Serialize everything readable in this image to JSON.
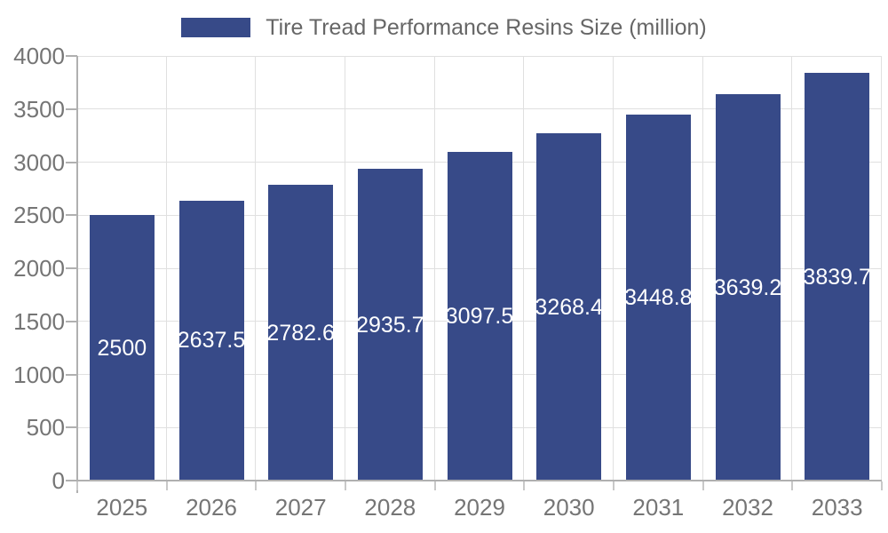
{
  "chart_data": {
    "type": "bar",
    "title": "Tire Tread Performance Resins Size (million)",
    "legend": {
      "position": "top",
      "entries": [
        "Tire Tread Performance Resins Size (million)"
      ]
    },
    "categories": [
      "2025",
      "2026",
      "2027",
      "2028",
      "2029",
      "2030",
      "2031",
      "2032",
      "2033"
    ],
    "values": [
      2500,
      2637.5,
      2782.6,
      2935.7,
      3097.5,
      3268.4,
      3448.8,
      3639.2,
      3839.7
    ],
    "value_labels": [
      "2500",
      "2637.5",
      "2782.6",
      "2935.7",
      "3097.5",
      "3268.4",
      "3448.8",
      "3639.2",
      "3839.7"
    ],
    "xlabel": "",
    "ylabel": "",
    "ylim": [
      0,
      4000
    ],
    "yticks": [
      0,
      500,
      1000,
      1500,
      2000,
      2500,
      3000,
      3500,
      4000
    ],
    "ytick_labels": [
      "0",
      "500",
      "1000",
      "1500",
      "2000",
      "2500",
      "3000",
      "3500",
      "4000"
    ],
    "grid": true,
    "colors": {
      "bar_fill": "#374a88",
      "bar_value_text": "#ffffff",
      "tick_text": "#757575",
      "legend_text": "#666666",
      "gridline": "#e0e0e0",
      "axis_line": "#b0b0b0",
      "x_tick_line": "#c9c9c9",
      "background": "#ffffff"
    }
  }
}
